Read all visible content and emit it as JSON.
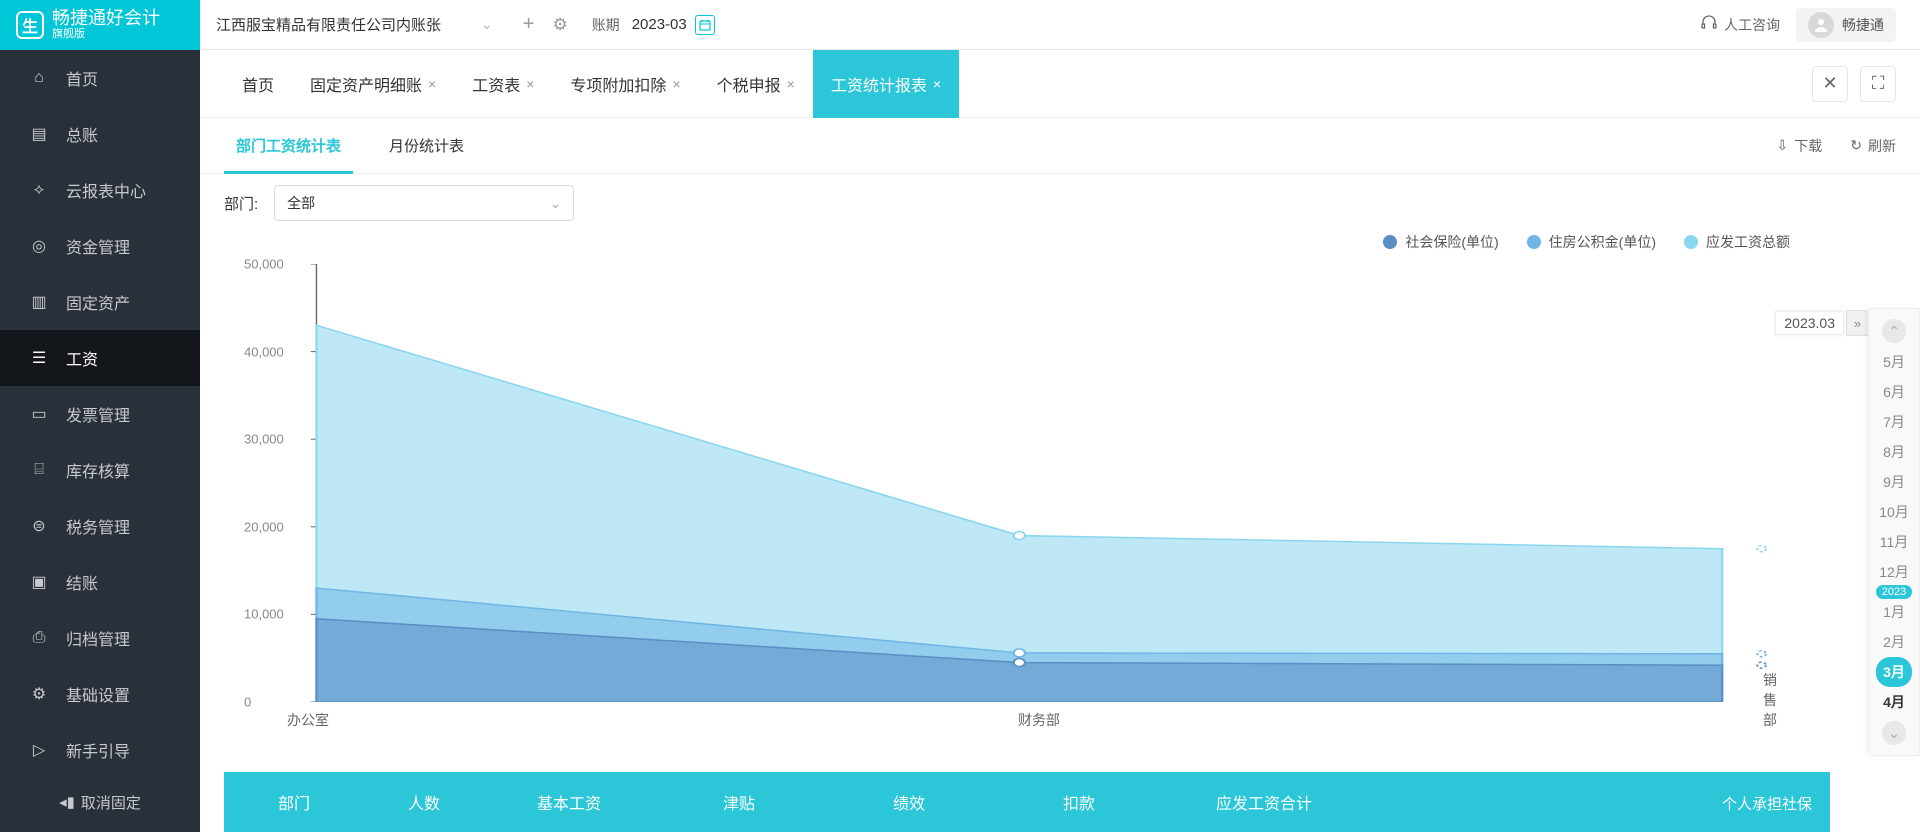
{
  "brand": {
    "name": "畅捷通好会计",
    "edition": "旗舰版",
    "logo_glyph": "生"
  },
  "header": {
    "company": "江西服宝精品有限责任公司内账张",
    "period_label": "账期",
    "period_value": "2023-03",
    "support": "人工咨询",
    "user": "畅捷通"
  },
  "sidebar": {
    "items": [
      {
        "icon": "home-icon",
        "glyph": "⌂",
        "label": "首页"
      },
      {
        "icon": "ledger-icon",
        "glyph": "▤",
        "label": "总账"
      },
      {
        "icon": "report-icon",
        "glyph": "⟡",
        "label": "云报表中心"
      },
      {
        "icon": "funds-icon",
        "glyph": "◎",
        "label": "资金管理"
      },
      {
        "icon": "asset-icon",
        "glyph": "▥",
        "label": "固定资产"
      },
      {
        "icon": "salary-icon",
        "glyph": "☰",
        "label": "工资"
      },
      {
        "icon": "invoice-icon",
        "glyph": "▭",
        "label": "发票管理"
      },
      {
        "icon": "inventory-icon",
        "glyph": "⌸",
        "label": "库存核算"
      },
      {
        "icon": "tax-icon",
        "glyph": "⊜",
        "label": "税务管理"
      },
      {
        "icon": "closing-icon",
        "glyph": "▣",
        "label": "结账"
      },
      {
        "icon": "archive-icon",
        "glyph": "⎙",
        "label": "归档管理"
      },
      {
        "icon": "settings-icon",
        "glyph": "⚙",
        "label": "基础设置"
      },
      {
        "icon": "guide-icon",
        "glyph": "▷",
        "label": "新手引导"
      }
    ],
    "active_index": 5,
    "unpin": "取消固定"
  },
  "tabs": {
    "items": [
      {
        "label": "首页",
        "closable": false
      },
      {
        "label": "固定资产明细账",
        "closable": true
      },
      {
        "label": "工资表",
        "closable": true
      },
      {
        "label": "专项附加扣除",
        "closable": true
      },
      {
        "label": "个税申报",
        "closable": true
      },
      {
        "label": "工资统计报表",
        "closable": true
      }
    ],
    "active_index": 5
  },
  "subtabs": {
    "items": [
      "部门工资统计表",
      "月份统计表"
    ],
    "active_index": 0,
    "download": "下载",
    "refresh": "刷新"
  },
  "filter": {
    "label": "部门:",
    "value": "全部"
  },
  "chart": {
    "type": "area",
    "categories": [
      "办公室",
      "财务部",
      "销售部"
    ],
    "series": [
      {
        "name": "社会保险(单位)",
        "color": "#5b8ec4",
        "fill": "rgba(91,142,196,0.55)",
        "values": [
          9500,
          4500,
          4200
        ]
      },
      {
        "name": "住房公积金(单位)",
        "color": "#6fb6e6",
        "fill": "rgba(111,182,230,0.55)",
        "values": [
          13000,
          5600,
          5500
        ]
      },
      {
        "name": "应发工资总额",
        "color": "#8bd6ef",
        "fill": "rgba(139,214,239,0.55)",
        "values": [
          43000,
          19000,
          17500
        ]
      }
    ],
    "y_max": 50000,
    "y_step": 10000,
    "y_ticks": [
      "0",
      "10,000",
      "20,000",
      "30,000",
      "40,000",
      "50,000"
    ],
    "grid_color": "#eeeeee"
  },
  "month_rail": {
    "indicator": "2023.03",
    "year_badge": "2023",
    "months": [
      "5月",
      "6月",
      "7月",
      "8月",
      "9月",
      "10月",
      "11月",
      "12月",
      "1月",
      "2月",
      "3月",
      "4月"
    ],
    "year_badge_before_index": 8,
    "active_index": 10,
    "last_bold_index": 11
  },
  "table": {
    "columns": [
      "部门",
      "人数",
      "基本工资",
      "津贴",
      "绩效",
      "扣款",
      "应发工资合计"
    ],
    "overflow_label": "个人承担社保"
  }
}
